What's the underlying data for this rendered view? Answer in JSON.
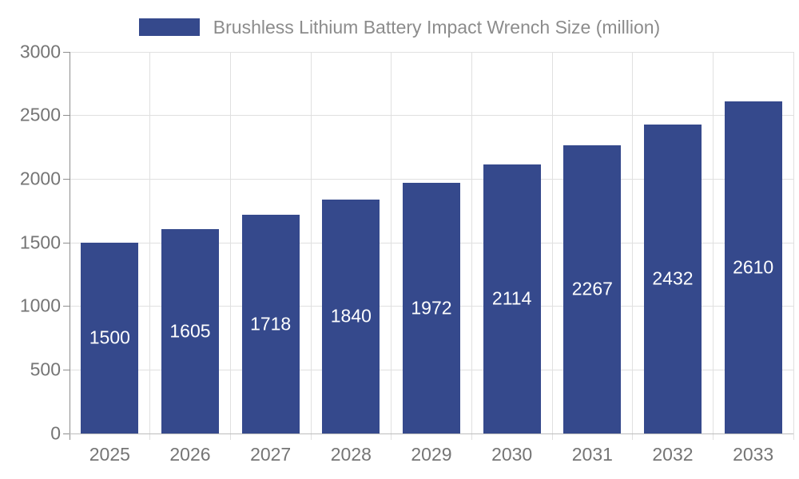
{
  "legend": {
    "label": "Brushless Lithium Battery Impact Wrench Size (million)"
  },
  "chart_data": {
    "type": "bar",
    "title": "Brushless Lithium Battery Impact Wrench Size (million)",
    "categories": [
      "2025",
      "2026",
      "2027",
      "2028",
      "2029",
      "2030",
      "2031",
      "2032",
      "2033"
    ],
    "values": [
      1500,
      1605,
      1718,
      1840,
      1972,
      2114,
      2267,
      2432,
      2610
    ],
    "xlabel": "",
    "ylabel": "",
    "ylim": [
      0,
      3000
    ],
    "yticks": [
      0,
      500,
      1000,
      1500,
      2000,
      2500,
      3000
    ],
    "grid": true,
    "legend_position": "top",
    "bar_labels_inside": true
  },
  "colors": {
    "bar": "#35498c",
    "bar_label": "#ffffff",
    "axis_label": "#757575",
    "legend_text": "#8c8c8c",
    "gridline": "#e0e0e0",
    "y_axis_line": "#8e8e8e",
    "x_axis_line": "#bcbcbc"
  }
}
